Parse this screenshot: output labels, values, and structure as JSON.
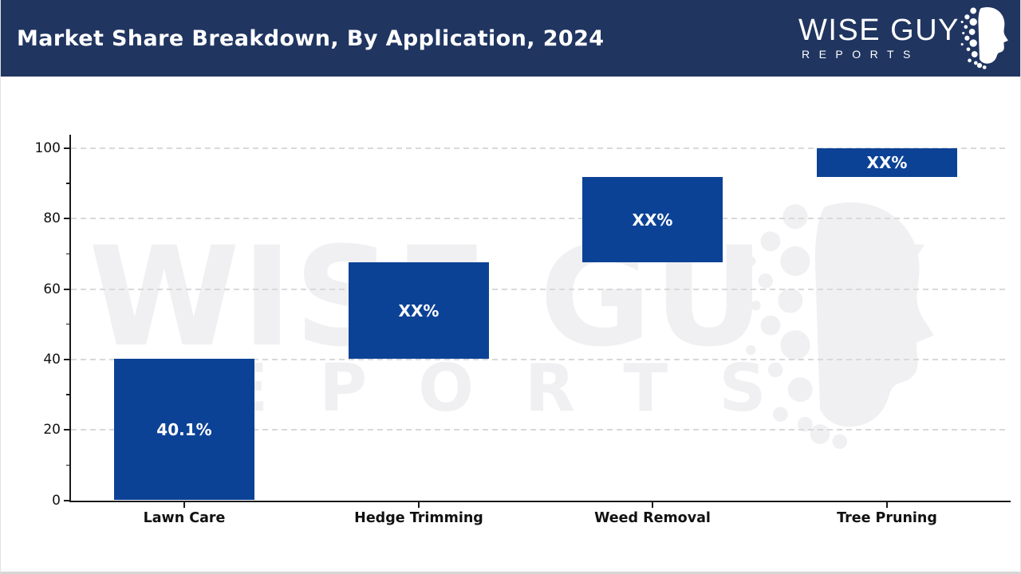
{
  "header": {
    "title": "Market Share Breakdown, By Application, 2024",
    "bg_color": "#203560",
    "logo": {
      "line1": "WISE GUY",
      "line2": "REPORTS",
      "face_icon": "dotted-head-profile"
    }
  },
  "watermark": {
    "line1": "WISE GU",
    "line1_suffix": "Y",
    "line2": "REPORTS",
    "color": "#f0f0f2"
  },
  "chart_data": {
    "type": "bar",
    "subtype": "waterfall",
    "title": "Market Share Breakdown, By Application, 2024",
    "categories": [
      "Lawn Care",
      "Hedge Trimming",
      "Weed Removal",
      "Tree Pruning"
    ],
    "segments": [
      {
        "category": "Lawn Care",
        "start": 0,
        "end": 40.1,
        "label": "40.1%"
      },
      {
        "category": "Hedge Trimming",
        "start": 40.1,
        "end": 67.6,
        "label": "XX%"
      },
      {
        "category": "Weed Removal",
        "start": 67.6,
        "end": 91.8,
        "label": "XX%"
      },
      {
        "category": "Tree Pruning",
        "start": 91.8,
        "end": 100,
        "label": "XX%"
      }
    ],
    "bar_color": "#0c4296",
    "label_color": "#ffffff",
    "xlabel": "",
    "ylabel": "",
    "ylim": [
      0,
      100
    ],
    "yticks": [
      0,
      20,
      40,
      60,
      80,
      100
    ],
    "minor_yticks": [
      10,
      30,
      50,
      70,
      90
    ],
    "grid": "horizontal-dashed-major",
    "legend": "none"
  }
}
